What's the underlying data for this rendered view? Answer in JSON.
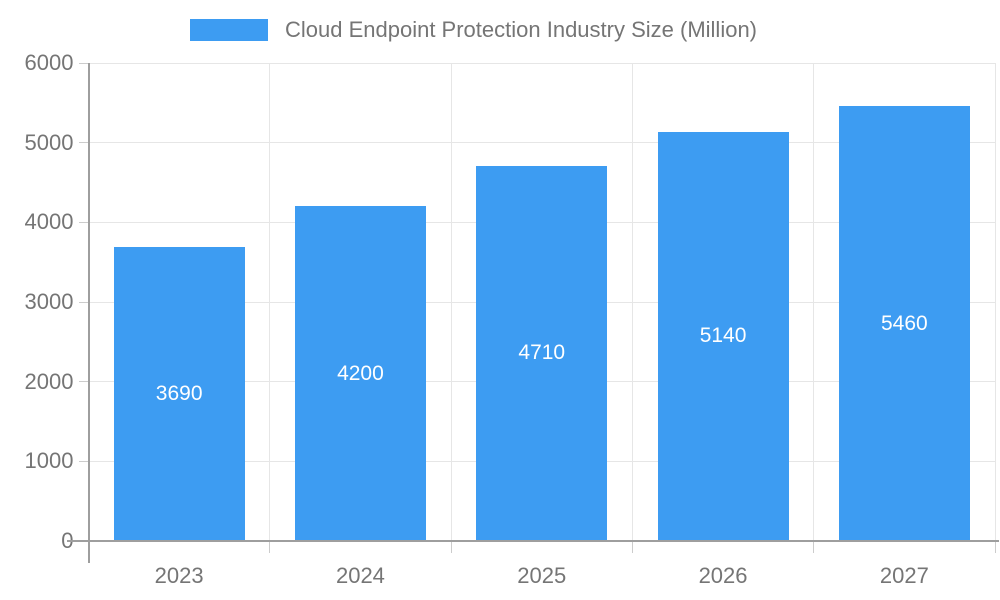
{
  "chart_data": {
    "type": "bar",
    "title": "Cloud Endpoint Protection Industry Size (Million)",
    "categories": [
      "2023",
      "2024",
      "2025",
      "2026",
      "2027"
    ],
    "values": [
      3690,
      4200,
      4710,
      5140,
      5460
    ],
    "series": [
      {
        "name": "Cloud Endpoint Protection Industry Size (Million)",
        "values": [
          3690,
          4200,
          4710,
          5140,
          5460
        ]
      }
    ],
    "xlabel": "",
    "ylabel": "",
    "ylim": [
      0,
      6000
    ],
    "yticks": [
      0,
      1000,
      2000,
      3000,
      4000,
      5000,
      6000
    ],
    "grid": true,
    "legend_position": "top",
    "value_labels_shown_inside_bars": true,
    "colors": {
      "bar": "#3d9cf2",
      "grid": "#e6e6e6",
      "axis_line": "#9e9e9e",
      "tick": "#cccccc",
      "axis_label": "#757575",
      "value_label": "#ffffff",
      "background": "#ffffff"
    }
  }
}
